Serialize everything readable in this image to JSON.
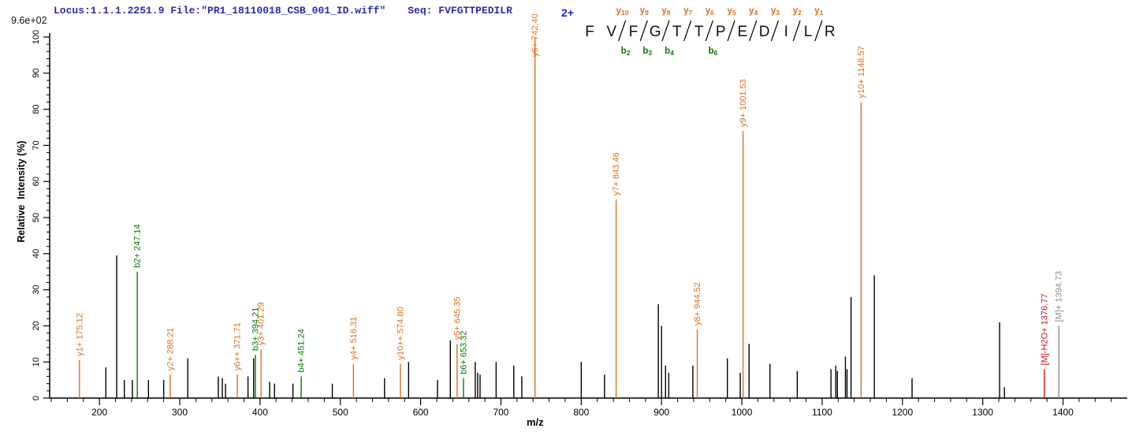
{
  "header": {
    "locus_file": "Locus:1.1.1.2251.9 File:\"PR1_18110018_CSB_001_ID.wiff\"",
    "seq_text": "Seq: FVFGTTPEDILR",
    "charge": "2+",
    "intensity_scale": "9.6e+02"
  },
  "axes": {
    "y_title": "Relative  Intensity (%)",
    "x_title": "m/z"
  },
  "sequence_panel": {
    "residues": [
      "F",
      "V",
      "F",
      "G",
      "T",
      "T",
      "P",
      "E",
      "D",
      "I",
      "L",
      "R"
    ],
    "cleavages": [
      {
        "after": 2,
        "y": "y10",
        "b": "b2"
      },
      {
        "after": 3,
        "y": "y9",
        "b": "b3"
      },
      {
        "after": 4,
        "y": "y8",
        "b": "b4"
      },
      {
        "after": 5,
        "y": "y7",
        "b": null
      },
      {
        "after": 6,
        "y": "y6",
        "b": "b6"
      },
      {
        "after": 7,
        "y": "y5",
        "b": null
      },
      {
        "after": 8,
        "y": "y4",
        "b": null
      },
      {
        "after": 9,
        "y": "y3",
        "b": null
      },
      {
        "after": 10,
        "y": "y2",
        "b": null
      },
      {
        "after": 11,
        "y": "y1",
        "b": null
      }
    ]
  },
  "colors": {
    "header_blue": "#2b2bb8",
    "charge_blue": "#1f1fcf",
    "y_ion_orange": "#dd6f1e",
    "b_ion_green": "#007a00",
    "precursor_loss_red": "#cc1111",
    "precursor_gray": "#8c8c8c",
    "peak_black": "#000000",
    "axis_black": "#000000"
  },
  "chart_data": {
    "type": "bar",
    "variant": "ms2-fragment-stick-spectrum",
    "xlabel": "m/z",
    "ylabel": "Relative  Intensity (%)",
    "intensity_scale_note": "9.6e+02",
    "x_range": [
      138,
      1480
    ],
    "y_range": [
      0,
      100
    ],
    "x_major_ticks": [
      200,
      300,
      400,
      500,
      600,
      700,
      800,
      900,
      1000,
      1100,
      1200,
      1300,
      1400
    ],
    "x_minor_step": 20,
    "y_major_ticks": [
      0,
      10,
      20,
      30,
      40,
      50,
      60,
      70,
      80,
      90,
      100
    ],
    "y_minor_step": 2,
    "grid": false,
    "series": [
      {
        "name": "y-ions",
        "color_key": "y_ion_orange",
        "peaks": [
          {
            "label": "y1+ 175.12",
            "mz": 175.12,
            "intensity": 10.5
          },
          {
            "label": "y2+ 288.21",
            "mz": 288.21,
            "intensity": 6.5
          },
          {
            "label": "y6++ 371.71",
            "mz": 371.71,
            "intensity": 6.5
          },
          {
            "label": "y3+ 401.29",
            "mz": 401.29,
            "intensity": 13.5
          },
          {
            "label": "y4+ 516.31",
            "mz": 516.31,
            "intensity": 9.5
          },
          {
            "label": "y10++ 574.80",
            "mz": 574.8,
            "intensity": 9.5
          },
          {
            "label": "y5+ 645.35",
            "mz": 645.35,
            "intensity": 15
          },
          {
            "label": "y6+ 742.40",
            "mz": 742.4,
            "intensity": 100
          },
          {
            "label": "y7+ 843.46",
            "mz": 843.46,
            "intensity": 55
          },
          {
            "label": "y8+ 944.52",
            "mz": 944.52,
            "intensity": 19
          },
          {
            "label": "y9+ 1001.53",
            "mz": 1001.53,
            "intensity": 74
          },
          {
            "label": "y10+ 1148.57",
            "mz": 1148.57,
            "intensity": 82
          }
        ]
      },
      {
        "name": "b-ions",
        "color_key": "b_ion_green",
        "peaks": [
          {
            "label": "b2+ 247.14",
            "mz": 247.14,
            "intensity": 35
          },
          {
            "label": "b3+ 394.21",
            "mz": 394.21,
            "intensity": 12
          },
          {
            "label": "b4+ 451.24",
            "mz": 451.24,
            "intensity": 6
          },
          {
            "label": "b6+ 653.32",
            "mz": 653.32,
            "intensity": 5.5
          }
        ]
      },
      {
        "name": "precursor-loss",
        "color_key": "precursor_loss_red",
        "peaks": [
          {
            "label": "[M]-H2O+ 1376.77",
            "mz": 1376.77,
            "intensity": 8
          }
        ]
      },
      {
        "name": "precursor",
        "color_key": "precursor_gray",
        "peaks": [
          {
            "label": "[M]+ 1394.73",
            "mz": 1394.73,
            "intensity": 20
          }
        ]
      },
      {
        "name": "unassigned",
        "color_key": "peak_black",
        "peaks_mz_intensity": [
          [
            208,
            8.5
          ],
          [
            221.5,
            39.5
          ],
          [
            231,
            5
          ],
          [
            241,
            5
          ],
          [
            261,
            5
          ],
          [
            280,
            5
          ],
          [
            310,
            11
          ],
          [
            348,
            6
          ],
          [
            353,
            5.5
          ],
          [
            357,
            4
          ],
          [
            385,
            6
          ],
          [
            392,
            11
          ],
          [
            412,
            4.5
          ],
          [
            418,
            4
          ],
          [
            441,
            4
          ],
          [
            490,
            4
          ],
          [
            555,
            5.5
          ],
          [
            585,
            10
          ],
          [
            621,
            5
          ],
          [
            637,
            16
          ],
          [
            668,
            10
          ],
          [
            671,
            7
          ],
          [
            674,
            6.5
          ],
          [
            694,
            10
          ],
          [
            716,
            9
          ],
          [
            726,
            6
          ],
          [
            800,
            10
          ],
          [
            829,
            6.5
          ],
          [
            896,
            26
          ],
          [
            900,
            20
          ],
          [
            905,
            9
          ],
          [
            909,
            7
          ],
          [
            939,
            9
          ],
          [
            982,
            11
          ],
          [
            998,
            7
          ],
          [
            1009,
            15
          ],
          [
            1035,
            9.5
          ],
          [
            1069,
            7.5
          ],
          [
            1111,
            8
          ],
          [
            1117,
            9
          ],
          [
            1119,
            7.5
          ],
          [
            1129,
            11.5
          ],
          [
            1131,
            8
          ],
          [
            1136,
            28
          ],
          [
            1165,
            34
          ],
          [
            1212,
            5.5
          ],
          [
            1321,
            21
          ],
          [
            1327,
            3
          ]
        ]
      }
    ]
  }
}
